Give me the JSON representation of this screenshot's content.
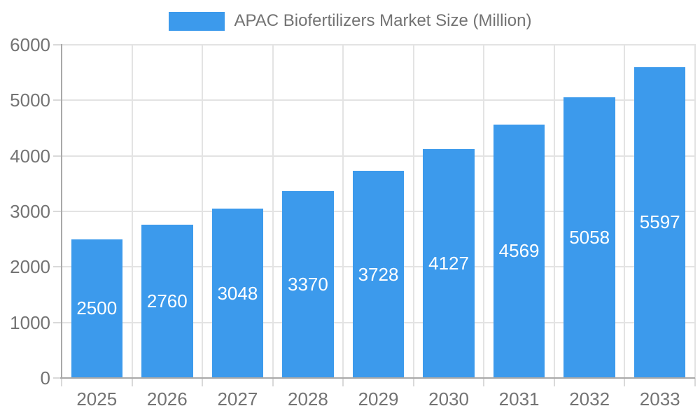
{
  "legend": {
    "label": "APAC Biofertilizers Market Size (Million)"
  },
  "chart_data": {
    "type": "bar",
    "title": "APAC Biofertilizers Market Size (Million)",
    "series_name": "APAC Biofertilizers Market Size (Million)",
    "categories": [
      "2025",
      "2026",
      "2027",
      "2028",
      "2029",
      "2030",
      "2031",
      "2032",
      "2033"
    ],
    "values": [
      2500,
      2760,
      3048,
      3370,
      3728,
      4127,
      4569,
      5058,
      5597
    ],
    "xlabel": "",
    "ylabel": "",
    "ylim": [
      0,
      6000
    ],
    "ytick_interval": 1000,
    "ytick_labels": [
      "0",
      "1000",
      "2000",
      "3000",
      "4000",
      "5000",
      "6000"
    ],
    "grid": true,
    "legend_position": "top",
    "value_label_position": "inside-center"
  },
  "colors": {
    "bar_fill": "#3C9AEC",
    "value_label_text": "#FFFFFF",
    "axis_text": "#737373",
    "legend_text": "#737373",
    "axis_line": "#A9A9A9",
    "grid_line": "#E3E3E3",
    "tick_line": "#D9D9D9",
    "background": "#FFFFFF"
  }
}
